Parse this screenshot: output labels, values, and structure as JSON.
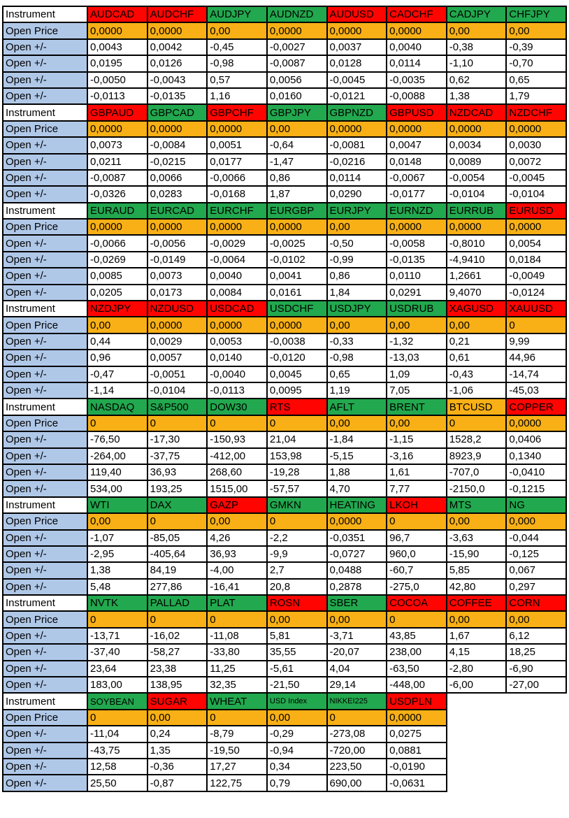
{
  "labels": {
    "instrument": "Instrument",
    "open_price": "Open Price",
    "open_change": "Open +/-"
  },
  "colors": {
    "up_red": "#ff0400",
    "down_green": "#22a84e",
    "price_orange": "#f8b016",
    "label_blue": "#b0c8e8",
    "grid": "#000000"
  },
  "blocks": [
    {
      "columns": [
        {
          "name": "AUDCAD",
          "color": "red",
          "open_price": "0,0000",
          "changes": [
            "0,0043",
            "0,0195",
            "-0,0050",
            "-0,0113"
          ]
        },
        {
          "name": "AUDCHF",
          "color": "red",
          "open_price": "0,0000",
          "changes": [
            "0,0042",
            "0,0126",
            "-0,0043",
            "-0,0135"
          ]
        },
        {
          "name": "AUDJPY",
          "color": "green",
          "open_price": "0,00",
          "changes": [
            "-0,45",
            "-0,98",
            "0,57",
            "1,16"
          ]
        },
        {
          "name": "AUDNZD",
          "color": "green",
          "open_price": "0,0000",
          "changes": [
            "-0,0027",
            "-0,0087",
            "0,0056",
            "0,0160"
          ]
        },
        {
          "name": "AUDUSD",
          "color": "red",
          "open_price": "0,0000",
          "changes": [
            "0,0037",
            "0,0128",
            "-0,0045",
            "-0,0121"
          ]
        },
        {
          "name": "CADCHF",
          "color": "red",
          "open_price": "0,0000",
          "changes": [
            "0,0040",
            "0,0114",
            "-0,0035",
            "-0,0088"
          ]
        },
        {
          "name": "CADJPY",
          "color": "green",
          "open_price": "0,00",
          "changes": [
            "-0,38",
            "-1,10",
            "0,62",
            "1,38"
          ]
        },
        {
          "name": "CHFJPY",
          "color": "green",
          "open_price": "0,00",
          "changes": [
            "-0,39",
            "-0,70",
            "0,65",
            "1,79"
          ]
        }
      ]
    },
    {
      "columns": [
        {
          "name": "GBPAUD",
          "color": "red",
          "open_price": "0,0000",
          "changes": [
            "0,0073",
            "0,0211",
            "-0,0087",
            "-0,0326"
          ]
        },
        {
          "name": "GBPCAD",
          "color": "green",
          "open_price": "0,0000",
          "changes": [
            "-0,0084",
            "-0,0215",
            "0,0066",
            "0,0283"
          ]
        },
        {
          "name": "GBPCHF",
          "color": "red",
          "open_price": "0,0000",
          "changes": [
            "0,0051",
            "0,0177",
            "-0,0066",
            "-0,0168"
          ]
        },
        {
          "name": "GBPJPY",
          "color": "green",
          "open_price": "0,00",
          "changes": [
            "-0,64",
            "-1,47",
            "0,86",
            "1,87"
          ]
        },
        {
          "name": "GBPNZD",
          "color": "green",
          "open_price": "0,0000",
          "changes": [
            "-0,0081",
            "-0,0216",
            "0,0114",
            "0,0290"
          ]
        },
        {
          "name": "GBPUSD",
          "color": "red",
          "open_price": "0,0000",
          "changes": [
            "0,0047",
            "0,0148",
            "-0,0067",
            "-0,0177"
          ]
        },
        {
          "name": "NZDCAD",
          "color": "red",
          "open_price": "0,0000",
          "changes": [
            "0,0034",
            "0,0089",
            "-0,0054",
            "-0,0104"
          ]
        },
        {
          "name": "NZDCHF",
          "color": "red",
          "open_price": "0,0000",
          "changes": [
            "0,0030",
            "0,0072",
            "-0,0045",
            "-0,0104"
          ]
        }
      ]
    },
    {
      "columns": [
        {
          "name": "EURAUD",
          "color": "green",
          "open_price": "0,0000",
          "changes": [
            "-0,0066",
            "-0,0269",
            "0,0085",
            "0,0205"
          ]
        },
        {
          "name": "EURCAD",
          "color": "green",
          "open_price": "0,0000",
          "changes": [
            "-0,0056",
            "-0,0149",
            "0,0073",
            "0,0173"
          ]
        },
        {
          "name": "EURCHF",
          "color": "green",
          "open_price": "0,0000",
          "changes": [
            "-0,0029",
            "-0,0064",
            "0,0040",
            "0,0084"
          ]
        },
        {
          "name": "EURGBP",
          "color": "green",
          "open_price": "0,0000",
          "changes": [
            "-0,0025",
            "-0,0102",
            "0,0041",
            "0,0161"
          ]
        },
        {
          "name": "EURJPY",
          "color": "green",
          "open_price": "0,00",
          "changes": [
            "-0,50",
            "-0,99",
            "0,86",
            "1,84"
          ]
        },
        {
          "name": "EURNZD",
          "color": "green",
          "open_price": "0,0000",
          "changes": [
            "-0,0058",
            "-0,0135",
            "0,0110",
            "0,0291"
          ]
        },
        {
          "name": "EURRUB",
          "color": "green",
          "open_price": "0,0000",
          "changes": [
            "-0,8010",
            "-4,9410",
            "1,2661",
            "9,4070"
          ]
        },
        {
          "name": "EURUSD",
          "color": "red",
          "open_price": "0,0000",
          "changes": [
            "0,0054",
            "0,0184",
            "-0,0049",
            "-0,0124"
          ]
        }
      ]
    },
    {
      "columns": [
        {
          "name": "NZDJPY",
          "color": "red",
          "open_price": "0,00",
          "changes": [
            "0,44",
            "0,96",
            "-0,47",
            "-1,14"
          ]
        },
        {
          "name": "NZDUSD",
          "color": "red",
          "open_price": "0,0000",
          "changes": [
            "0,0029",
            "0,0057",
            "-0,0051",
            "-0,0104"
          ]
        },
        {
          "name": "USDCAD",
          "color": "red",
          "open_price": "0,0000",
          "changes": [
            "0,0053",
            "0,0140",
            "-0,0040",
            "-0,0113"
          ]
        },
        {
          "name": "USDCHF",
          "color": "green",
          "open_price": "0,0000",
          "changes": [
            "-0,0038",
            "-0,0120",
            "0,0045",
            "0,0095"
          ]
        },
        {
          "name": "USDJPY",
          "color": "green",
          "open_price": "0,00",
          "changes": [
            "-0,33",
            "-0,98",
            "0,65",
            "1,19"
          ]
        },
        {
          "name": "USDRUB",
          "color": "green",
          "open_price": "0,00",
          "changes": [
            "-1,32",
            "-13,03",
            "1,09",
            "7,05"
          ]
        },
        {
          "name": "XAGUSD",
          "color": "red",
          "open_price": "0,00",
          "changes": [
            "0,21",
            "0,61",
            "-0,43",
            "-1,06"
          ]
        },
        {
          "name": "XAUUSD",
          "color": "red",
          "open_price": "0",
          "changes": [
            "9,99",
            "44,96",
            "-14,74",
            "-45,03"
          ]
        }
      ]
    },
    {
      "columns": [
        {
          "name": "NASDAQ",
          "color": "green",
          "open_price": "0",
          "changes": [
            "-76,50",
            "-264,00",
            "119,40",
            "534,00"
          ]
        },
        {
          "name": "S&P500",
          "color": "green",
          "open_price": "0",
          "changes": [
            "-17,30",
            "-37,75",
            "36,93",
            "193,25"
          ]
        },
        {
          "name": "DOW30",
          "color": "green",
          "open_price": "0",
          "changes": [
            "-150,93",
            "-412,00",
            "268,60",
            "1515,00"
          ]
        },
        {
          "name": "RTS",
          "color": "red",
          "open_price": "0",
          "changes": [
            "21,04",
            "153,98",
            "-19,28",
            "-57,57"
          ]
        },
        {
          "name": "AFLT",
          "color": "green",
          "open_price": "0,00",
          "changes": [
            "-1,84",
            "-5,15",
            "1,88",
            "4,70"
          ]
        },
        {
          "name": "BRENT",
          "color": "green",
          "open_price": "0,00",
          "changes": [
            "-1,15",
            "-3,16",
            "1,61",
            "7,77"
          ]
        },
        {
          "name": "BTCUSD",
          "color": "orange",
          "open_price": "0",
          "changes": [
            "1528,2",
            "8923,9",
            "-707,0",
            "-2150,0"
          ]
        },
        {
          "name": "COPPER",
          "color": "red",
          "open_price": "0,0000",
          "changes": [
            "0,0406",
            "0,1340",
            "-0,0410",
            "-0,1215"
          ]
        }
      ]
    },
    {
      "columns": [
        {
          "name": "WTI",
          "color": "green",
          "open_price": "0,00",
          "changes": [
            "-1,07",
            "-2,95",
            "1,38",
            "5,48"
          ]
        },
        {
          "name": "DAX",
          "color": "green",
          "open_price": "0",
          "changes": [
            "-85,05",
            "-405,64",
            "84,19",
            "277,86"
          ]
        },
        {
          "name": "GAZP",
          "color": "red",
          "open_price": "0,00",
          "changes": [
            "4,26",
            "36,93",
            "-4,00",
            "-16,41"
          ]
        },
        {
          "name": "GMKN",
          "color": "green",
          "open_price": "0",
          "changes": [
            "-2,2",
            "-9,9",
            "2,7",
            "20,8"
          ]
        },
        {
          "name": "HEATING",
          "color": "green",
          "open_price": "0,0000",
          "changes": [
            "-0,0351",
            "-0,0727",
            "0,0488",
            "0,2878"
          ]
        },
        {
          "name": "LKOH",
          "color": "red",
          "open_price": "0",
          "changes": [
            "96,7",
            "960,0",
            "-60,7",
            "-275,0"
          ]
        },
        {
          "name": "MTS",
          "color": "green",
          "open_price": "0,00",
          "changes": [
            "-3,63",
            "-15,90",
            "5,85",
            "42,80"
          ]
        },
        {
          "name": "NG",
          "color": "green",
          "open_price": "0,000",
          "changes": [
            "-0,044",
            "-0,125",
            "0,067",
            "0,297"
          ]
        }
      ]
    },
    {
      "columns": [
        {
          "name": "NVTK",
          "color": "green",
          "open_price": "0",
          "changes": [
            "-13,71",
            "-37,40",
            "23,64",
            "183,00"
          ]
        },
        {
          "name": "PALLAD",
          "color": "green",
          "open_price": "0",
          "changes": [
            "-16,02",
            "-58,27",
            "23,38",
            "138,95"
          ]
        },
        {
          "name": "PLAT",
          "color": "green",
          "open_price": "0",
          "changes": [
            "-11,08",
            "-33,80",
            "11,25",
            "32,35"
          ]
        },
        {
          "name": "ROSN",
          "color": "red",
          "open_price": "0,00",
          "changes": [
            "5,81",
            "35,55",
            "-5,61",
            "-21,50"
          ]
        },
        {
          "name": "SBER",
          "color": "green",
          "open_price": "0,00",
          "changes": [
            "-3,71",
            "-20,07",
            "4,04",
            "29,14"
          ]
        },
        {
          "name": "COCOA",
          "color": "red",
          "open_price": "0",
          "changes": [
            "43,85",
            "238,00",
            "-63,50",
            "-448,00"
          ]
        },
        {
          "name": "COFFEE",
          "color": "red",
          "open_price": "0,00",
          "changes": [
            "1,67",
            "4,15",
            "-2,80",
            "-6,00"
          ]
        },
        {
          "name": "CORN",
          "color": "red",
          "open_price": "0,00",
          "changes": [
            "6,12",
            "18,25",
            "-6,90",
            "-27,00"
          ]
        }
      ]
    },
    {
      "columns": [
        {
          "name": "SOYBEAN",
          "color": "green",
          "size": "md",
          "open_price": "0",
          "changes": [
            "-11,04",
            "-43,75",
            "12,58",
            "25,50"
          ]
        },
        {
          "name": "SUGAR",
          "color": "red",
          "open_price": "0,00",
          "changes": [
            "0,24",
            "1,35",
            "-0,36",
            "-0,87"
          ]
        },
        {
          "name": "WHEAT",
          "color": "green",
          "open_price": "0",
          "changes": [
            "-8,79",
            "-19,50",
            "17,27",
            "122,75"
          ]
        },
        {
          "name": "USD Index",
          "color": "green",
          "size": "sm",
          "open_price": "0,00",
          "changes": [
            "-0,29",
            "-0,94",
            "0,34",
            "0,79"
          ]
        },
        {
          "name": "NIKKEI225",
          "color": "green",
          "size": "sm",
          "open_price": "0",
          "changes": [
            "-273,08",
            "-720,00",
            "223,50",
            "690,00"
          ]
        },
        {
          "name": "USDPLN",
          "color": "red",
          "open_price": "0,0000",
          "changes": [
            "0,0275",
            "0,0881",
            "-0,0190",
            "-0,0631"
          ]
        }
      ]
    }
  ]
}
